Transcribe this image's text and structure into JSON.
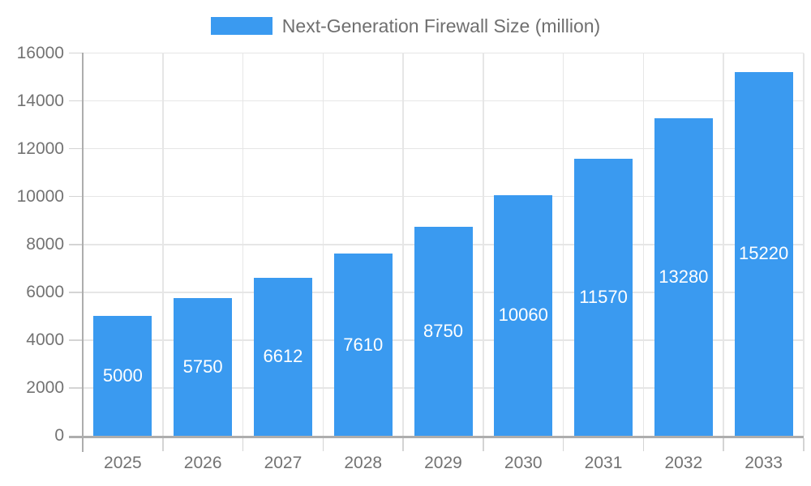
{
  "chart_data": {
    "type": "bar",
    "title": "Next-Generation Firewall Size (million)",
    "categories": [
      "2025",
      "2026",
      "2027",
      "2028",
      "2029",
      "2030",
      "2031",
      "2032",
      "2033"
    ],
    "series": [
      {
        "name": "Next-Generation Firewall Size (million)",
        "values": [
          5000,
          5750,
          6612,
          7610,
          8750,
          10060,
          11570,
          13280,
          15220
        ]
      }
    ],
    "xlabel": "",
    "ylabel": "",
    "ylim": [
      0,
      16000
    ],
    "yticks": [
      0,
      2000,
      4000,
      6000,
      8000,
      10000,
      12000,
      14000,
      16000
    ],
    "grid": true,
    "legend_position": "top",
    "bar_labels_inside": true,
    "colors": {
      "bar": "#3a9af0",
      "bar_label_text": "#ffffff",
      "axis_text": "#737373",
      "axis_line": "#adadad",
      "gridline": "#e6e6e6",
      "tick": "#d4d4d4",
      "background": "#ffffff"
    }
  }
}
